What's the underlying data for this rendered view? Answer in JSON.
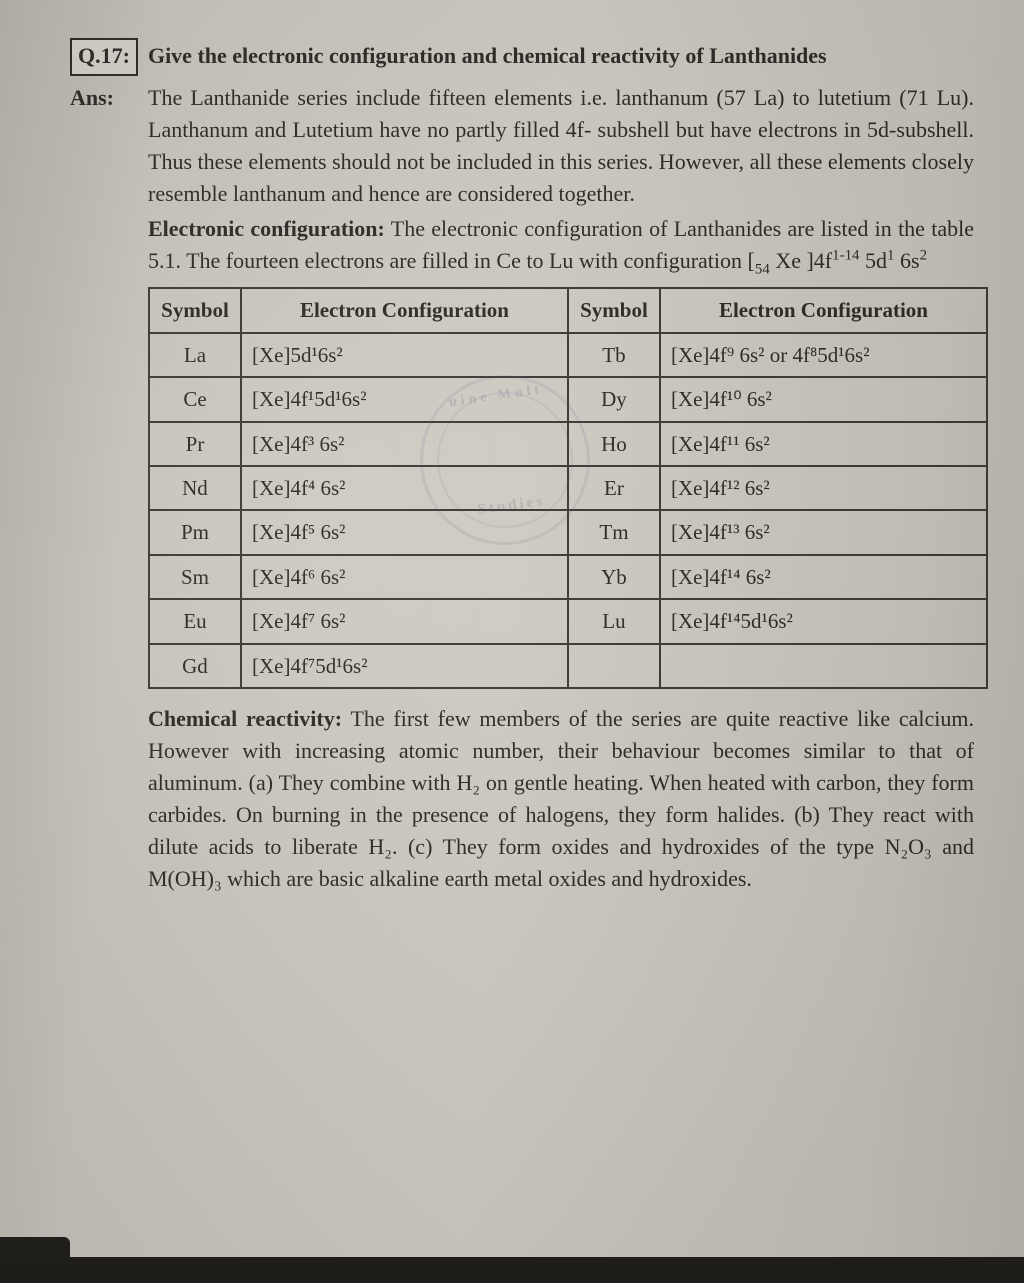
{
  "question": {
    "number": "Q.17:",
    "text": "Give the electronic configuration and chemical reactivity of Lanthanides"
  },
  "answer_label": "Ans:",
  "paragraphs": {
    "p1": "The Lanthanide series include fifteen elements i.e. lanthanum (57 La) to lutetium (71 Lu). Lanthanum and Lutetium have no partly filled 4f- subshell but have electrons in 5d-subshell. Thus these elements should not be included in this series. However, all these elements closely resemble lanthanum and hence are considered together.",
    "p2_head": "Electronic configuration:",
    "p2_body": " The electronic configuration of Lanthanides are listed in the table 5.1. The fourteen electrons are filled in Ce to Lu with configuration [",
    "p2_tail_prefix": "54",
    "p2_tail": " Xe ]4f",
    "formula_parts": {
      "a": "1-14",
      "b": " 5d",
      "c": "1",
      "d": " 6s",
      "e": "2"
    }
  },
  "table": {
    "headers": [
      "Symbol",
      "Electron Configuration",
      "Symbol",
      "Electron Configuration"
    ],
    "rows": [
      {
        "s1": "La",
        "c1": "[Xe]5d¹6s²",
        "s2": "Tb",
        "c2": "[Xe]4f⁹ 6s² or 4f⁸5d¹6s²"
      },
      {
        "s1": "Ce",
        "c1": "[Xe]4f¹5d¹6s²",
        "s2": "Dy",
        "c2": "[Xe]4f¹⁰  6s²"
      },
      {
        "s1": "Pr",
        "c1": "[Xe]4f³ 6s²",
        "s2": "Ho",
        "c2": "[Xe]4f¹¹  6s²"
      },
      {
        "s1": "Nd",
        "c1": "[Xe]4f⁴ 6s²",
        "s2": "Er",
        "c2": "[Xe]4f¹²  6s²"
      },
      {
        "s1": "Pm",
        "c1": "[Xe]4f⁵ 6s²",
        "s2": "Tm",
        "c2": "[Xe]4f¹³  6s²"
      },
      {
        "s1": "Sm",
        "c1": "[Xe]4f⁶ 6s²",
        "s2": "Yb",
        "c2": "[Xe]4f¹⁴  6s²"
      },
      {
        "s1": "Eu",
        "c1": "[Xe]4f⁷ 6s²",
        "s2": "Lu",
        "c2": "[Xe]4f¹⁴5d¹6s²"
      },
      {
        "s1": "Gd",
        "c1": "[Xe]4f⁷5d¹6s²",
        "s2": "",
        "c2": ""
      }
    ]
  },
  "reactivity": {
    "head": "Chemical reactivity:",
    "body": " The first few members of the series are quite reactive like calcium. However with increasing atomic number, their behaviour becomes similar to that of aluminum. (a) They combine with H₂ on gentle heating. When heated with carbon, they form carbides. On burning in the presence of halogens, they form halides. (b) They react with dilute acids to liberate H₂. (c) They form oxides and hydroxides of the type N₂O₃ and M(OH)₃ which are basic alkaline earth metal oxides and hydroxides."
  },
  "stamp": {
    "top": "uine Mult",
    "mid": "Studies"
  },
  "colors": {
    "text": "#2a2824",
    "border": "#3a3832",
    "page_bg": "#cdc9c0"
  }
}
